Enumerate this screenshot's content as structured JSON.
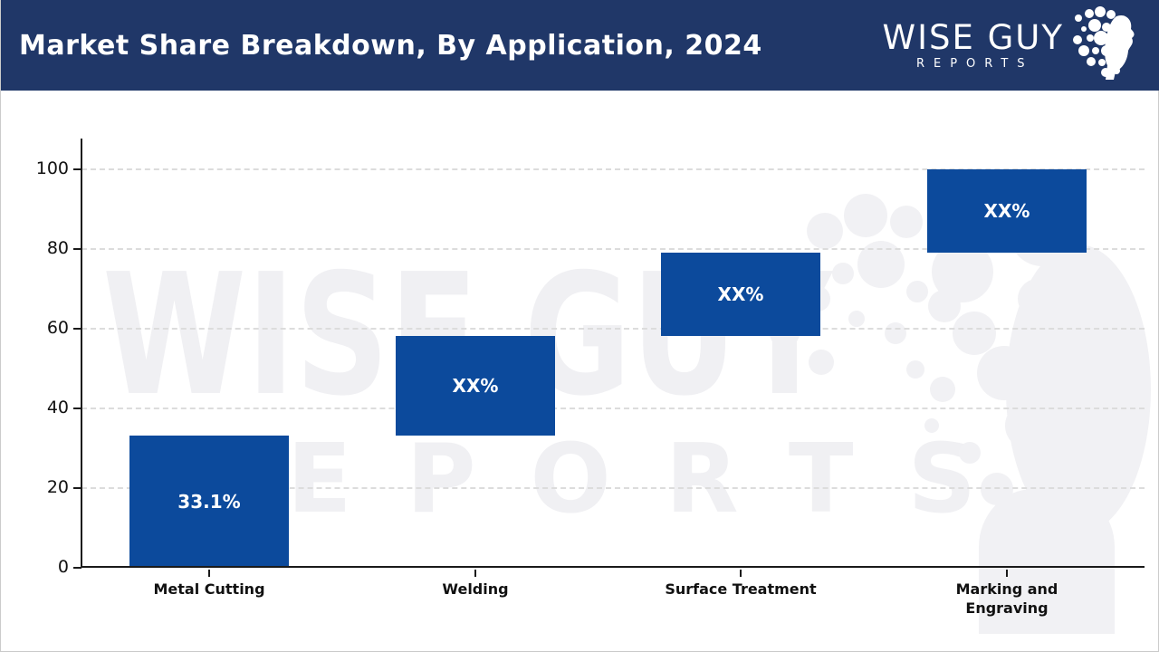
{
  "header": {
    "title": "Market Share Breakdown, By Application, 2024",
    "logo": {
      "line1": "WISE GUY",
      "line2": "REPORTS"
    }
  },
  "watermark": {
    "line1": "WISE GUY",
    "line2": "REPORTS"
  },
  "colors": {
    "header_bg": "#203768",
    "bar": "#0c4a9c",
    "gridline": "#dcdcdc",
    "axis": "#1a1a1a",
    "watermark": "#f0f0f3"
  },
  "chart_data": {
    "type": "bar",
    "subtype": "waterfall",
    "title": "Market Share Breakdown, By Application, 2024",
    "categories": [
      "Metal Cutting",
      "Welding",
      "Surface Treatment",
      "Marking and Engraving"
    ],
    "segments": [
      {
        "category": "Metal Cutting",
        "start": 0,
        "end": 33.1,
        "label": "33.1%"
      },
      {
        "category": "Welding",
        "start": 33.1,
        "end": 58.2,
        "label": "XX%"
      },
      {
        "category": "Surface Treatment",
        "start": 58.2,
        "end": 79.1,
        "label": "XX%"
      },
      {
        "category": "Marking and Engraving",
        "start": 79.1,
        "end": 100,
        "label": "XX%"
      }
    ],
    "xlabel": "",
    "ylabel": "",
    "ylim": [
      0,
      100
    ],
    "yticks": [
      0,
      20,
      40,
      60,
      80,
      100
    ],
    "grid": "horizontal-dashed",
    "legend": "none",
    "bar_label_color": "#ffffff"
  }
}
